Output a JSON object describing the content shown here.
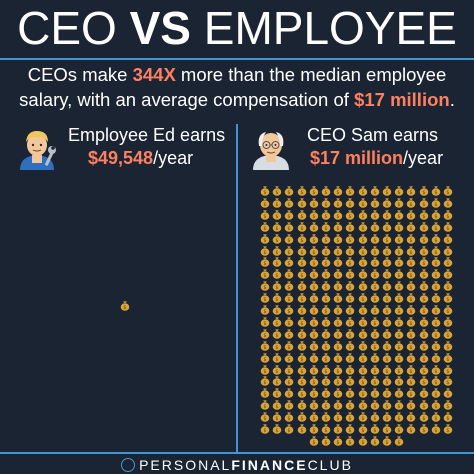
{
  "header": {
    "title_left": "CEO ",
    "title_vs": "VS",
    "title_right": " EMPLOYEE"
  },
  "summary": {
    "part1": "CEOs make ",
    "multiple": "344X",
    "part2": " more than the median employee salary, with an average compensation of ",
    "amount": "$17 million",
    "part3": "."
  },
  "employee": {
    "name": "Employee Ed earns",
    "amount": "$49,548",
    "unit": "/year",
    "avatar_icon": "man-mechanic-emoji-icon",
    "bag_count": 1
  },
  "ceo": {
    "name": "CEO Sam earns",
    "amount": "$17 million",
    "unit": "/year",
    "avatar_icon": "old-man-emoji-icon",
    "bag_count": 344
  },
  "money_bag_icon": "money-bag-icon",
  "footer": {
    "light1": "PERSONAL",
    "bold": "FINANCE",
    "light2": "CLUB"
  },
  "colors": {
    "background": "#1b2433",
    "accent": "#ff8060",
    "divider": "#3f95d8",
    "bag": "#d9a53b"
  }
}
